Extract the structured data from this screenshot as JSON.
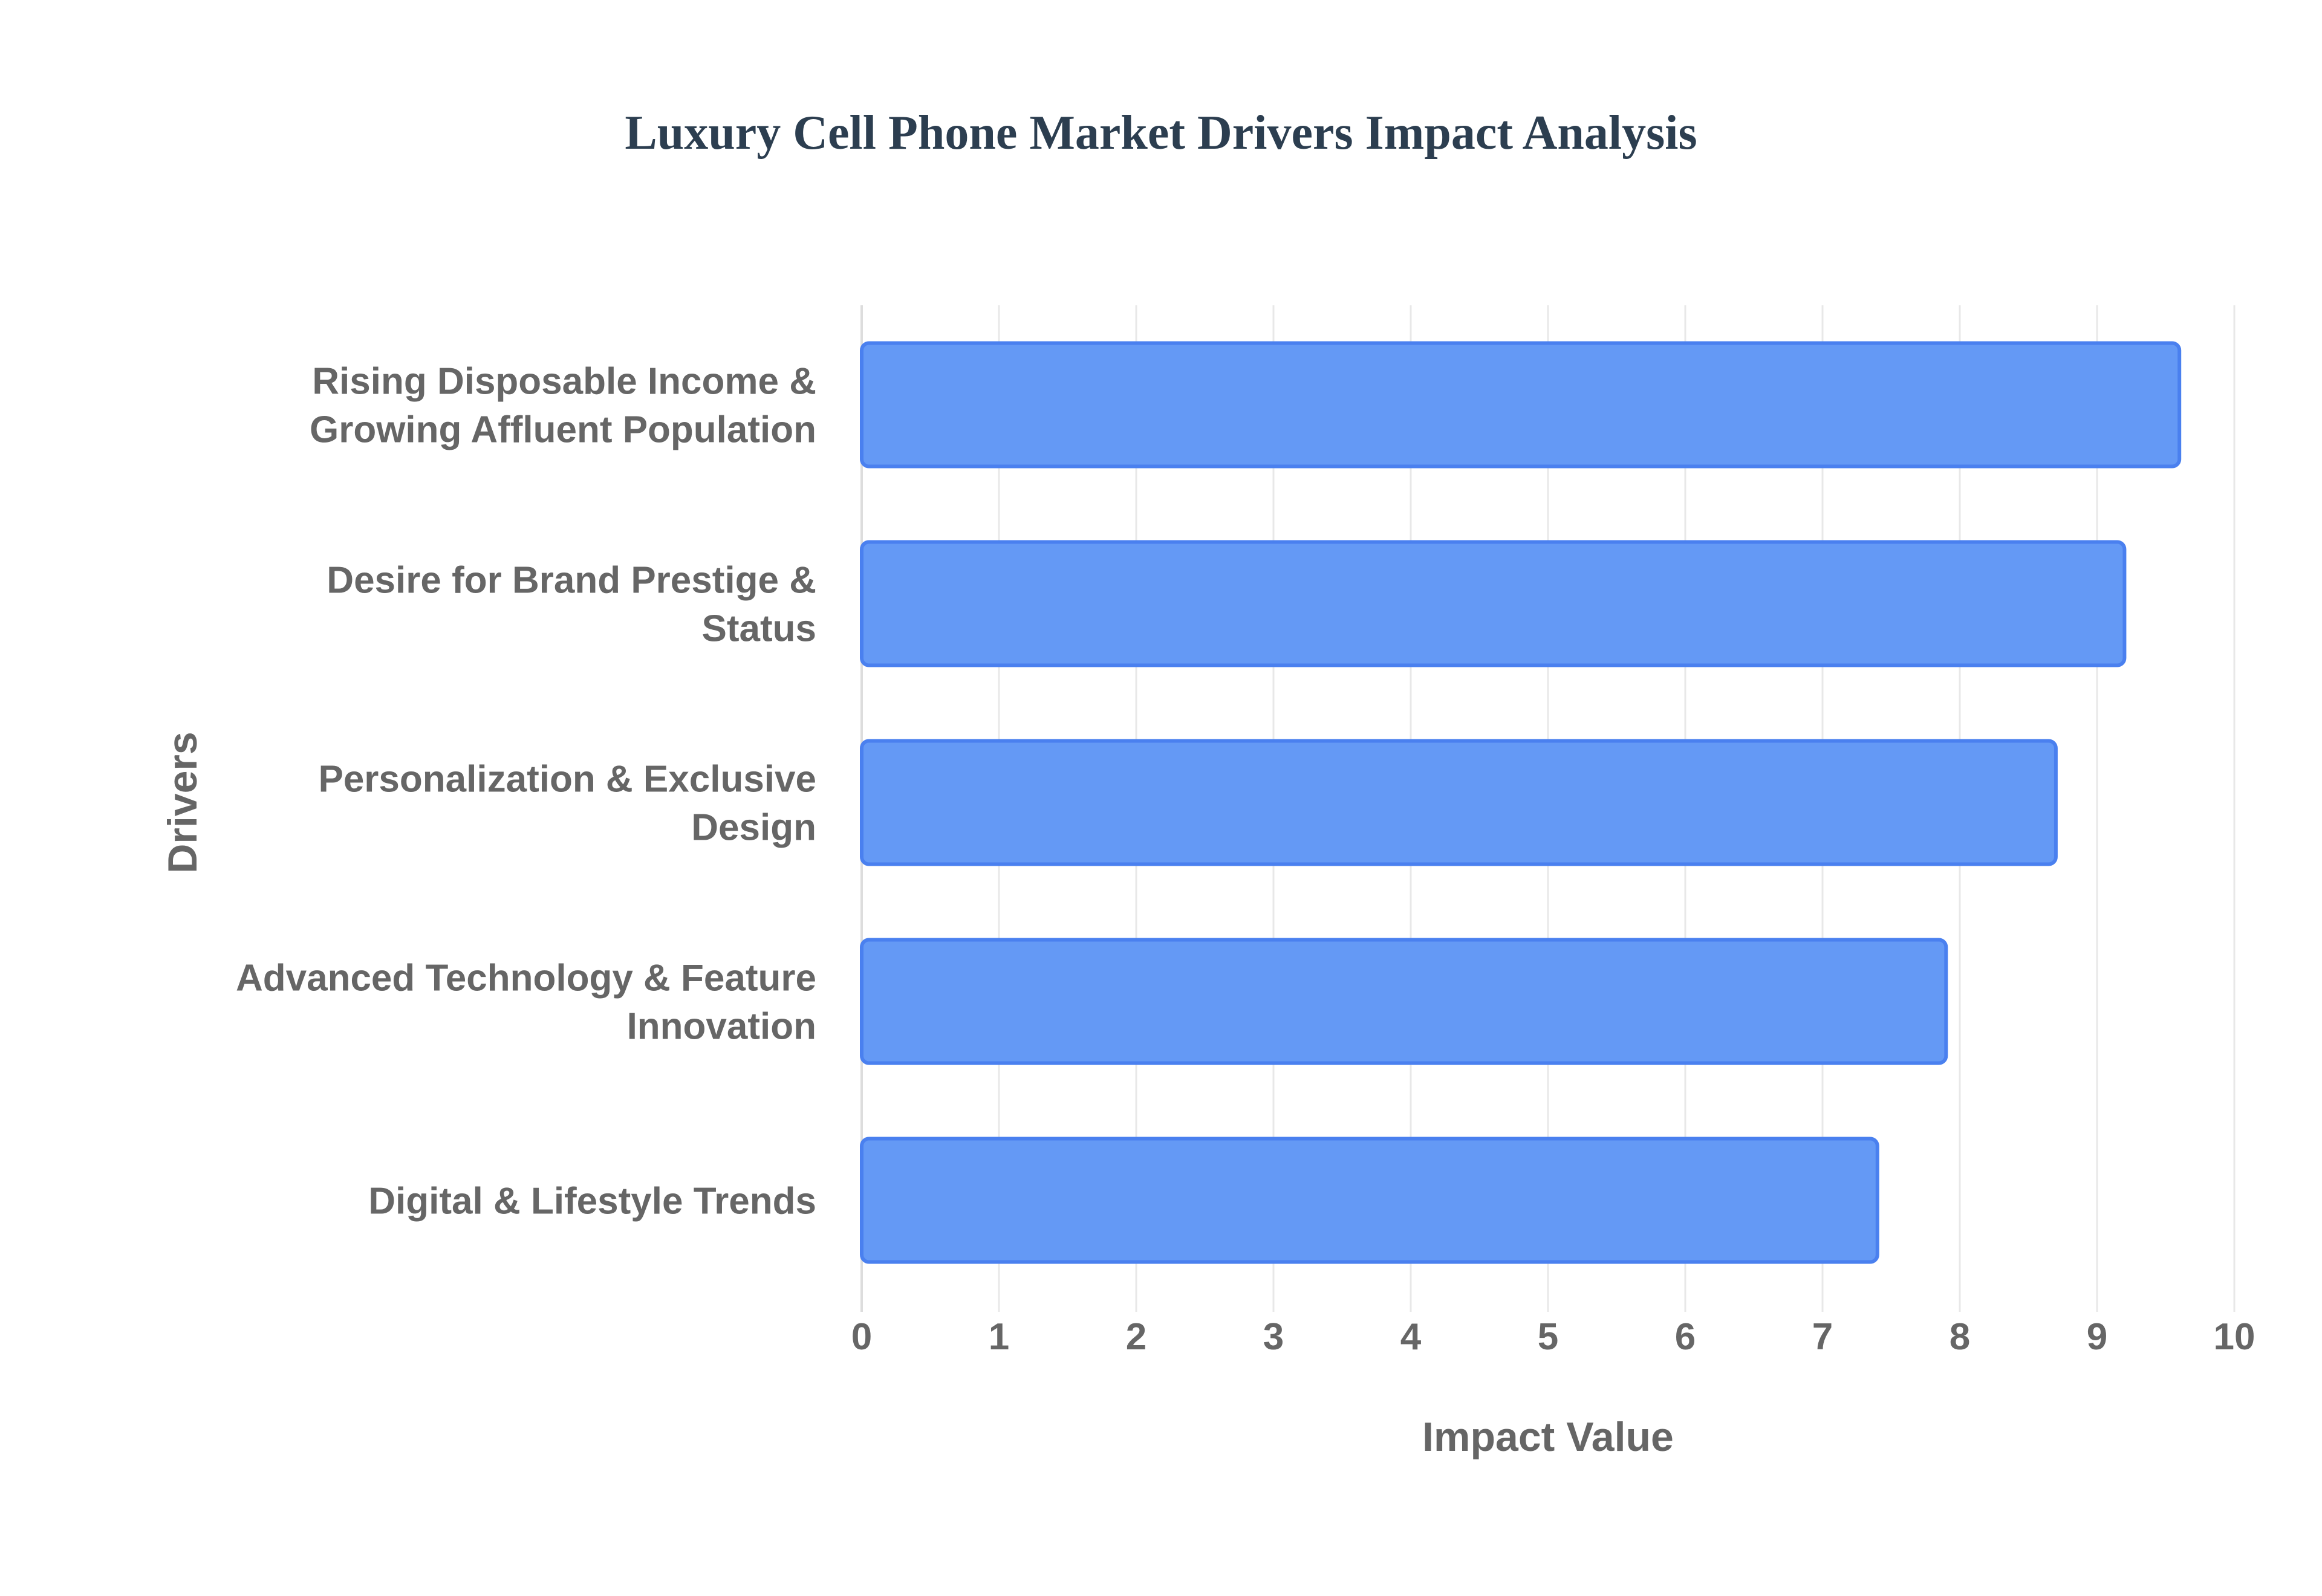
{
  "chart_data": {
    "type": "bar",
    "orientation": "horizontal",
    "title": "Luxury Cell Phone Market Drivers Impact Analysis",
    "xlabel": "Impact Value",
    "ylabel": "Drivers",
    "xlim": [
      0,
      10
    ],
    "xticks": [
      "0",
      "1",
      "2",
      "3",
      "4",
      "5",
      "6",
      "7",
      "8",
      "9",
      "10"
    ],
    "grid": true,
    "categories": [
      [
        "Rising Disposable Income &",
        "Growing Affluent Population"
      ],
      [
        "Desire for Brand Prestige &",
        "Status"
      ],
      [
        "Personalization & Exclusive",
        "Design"
      ],
      [
        "Advanced Technology & Feature",
        "Innovation"
      ],
      [
        "Digital & Lifestyle Trends"
      ]
    ],
    "values": [
      9.6,
      9.2,
      8.7,
      7.9,
      7.4
    ],
    "colors": {
      "bar_fill": "#6499f5",
      "bar_stroke": "#4a80ef",
      "grid": "#e8e8e8",
      "axis": "#dddddd",
      "text": "#666666",
      "title": "#2c3e50"
    }
  }
}
